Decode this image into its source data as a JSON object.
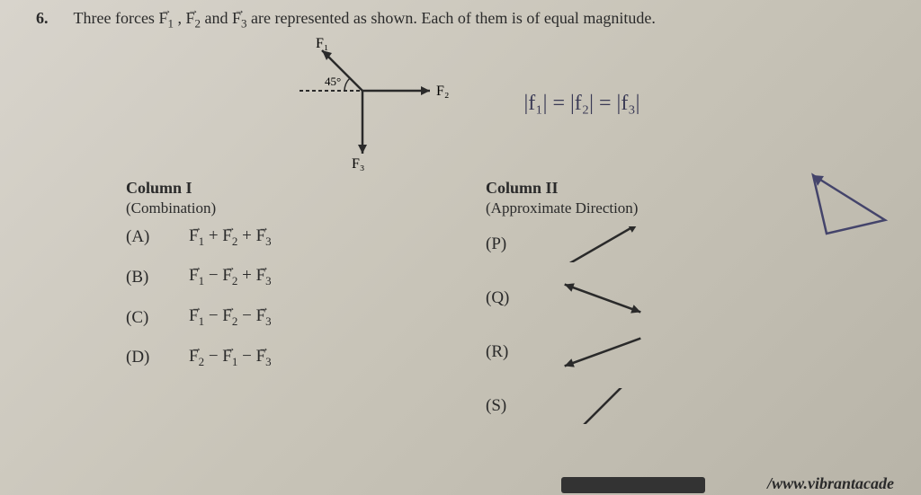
{
  "question": {
    "number": "6.",
    "text_before": "Three forces ",
    "f1": "F",
    "f1_sub": "1",
    "mid1": " , ",
    "f2": "F",
    "f2_sub": "2",
    "mid2": " and ",
    "f3": "F",
    "f3_sub": "3",
    "text_after": " are represented as shown. Each of them is of equal magnitude."
  },
  "diagram": {
    "angle_label": "45°",
    "F1_label": "F₁",
    "F2_label": "F₂",
    "F3_label": "F₃",
    "line_color": "#2a2a2a",
    "dash_color": "#2a2a2a"
  },
  "handwriting": {
    "text": "|f₁| = |f₂| = |f₃|",
    "color": "#44446b"
  },
  "columns": {
    "left_head": "Column I",
    "left_sub": "(Combination)",
    "right_head": "Column II",
    "right_sub": "(Approximate Direction)"
  },
  "options_left": [
    {
      "label": "(A)",
      "expr_parts": [
        "F",
        "1",
        " + ",
        "F",
        "2",
        " + ",
        "F",
        "3"
      ]
    },
    {
      "label": "(B)",
      "expr_parts": [
        "F",
        "1",
        " − ",
        "F",
        "2",
        " + ",
        "F",
        "3"
      ]
    },
    {
      "label": "(C)",
      "expr_parts": [
        "F",
        "1",
        " − ",
        "F",
        "2",
        " − ",
        "F",
        "3"
      ]
    },
    {
      "label": "(D)",
      "expr_parts": [
        "F",
        "2",
        " − ",
        "F",
        "1",
        " − ",
        "F",
        "3"
      ]
    }
  ],
  "options_right": [
    {
      "label": "(P)",
      "angle_deg": 30,
      "double_head": false
    },
    {
      "label": "(Q)",
      "angle_deg": -20,
      "double_head": true
    },
    {
      "label": "(R)",
      "angle_deg": 200,
      "double_head": false
    },
    {
      "label": "(S)",
      "angle_deg": 45,
      "double_head": false
    }
  ],
  "footer": {
    "fragment": "/www.vibrantacade"
  },
  "colors": {
    "ink": "#2a2a2a",
    "hand": "#44446b",
    "bg_grad_from": "#d8d4cc",
    "bg_grad_to": "#b8b4a8"
  },
  "fonts": {
    "body_family": "Times New Roman",
    "body_size_pt": 14,
    "head_weight": "bold"
  }
}
